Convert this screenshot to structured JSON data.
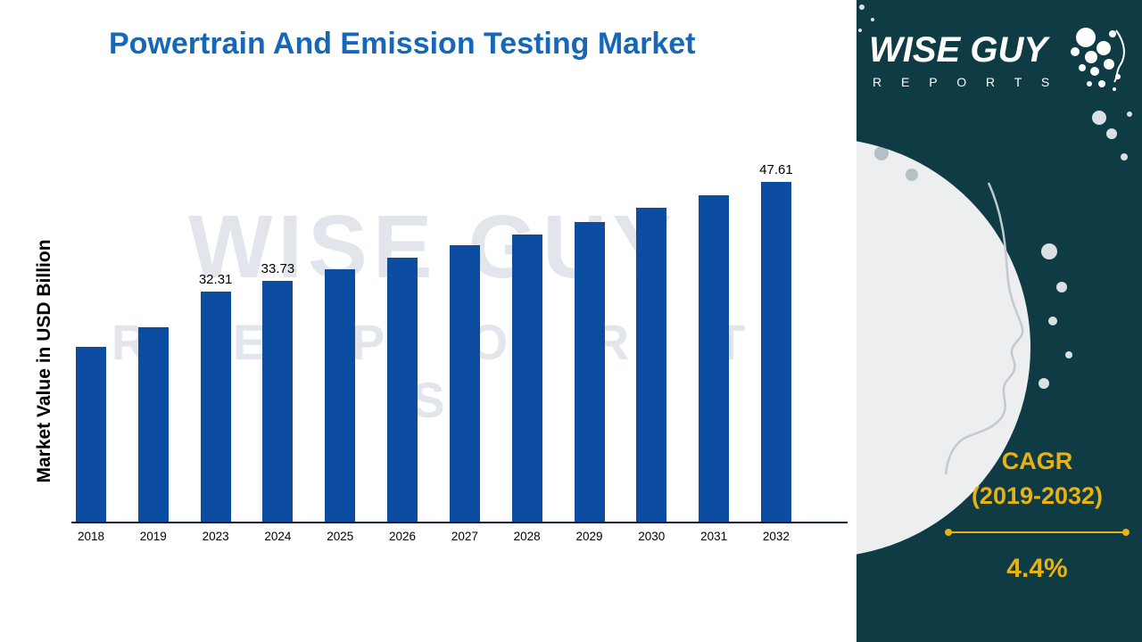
{
  "page": {
    "title": "Powertrain And Emission Testing Market"
  },
  "y_axis_label": "Market Value in USD Billion",
  "watermark": {
    "line1": "WISE GUY",
    "line2": "R E P O R T S"
  },
  "brand": {
    "name": "WISE GUY",
    "tagline": "R E P O R T S"
  },
  "cagr": {
    "label": "CAGR",
    "range": "(2019-2032)",
    "value": "4.4%"
  },
  "colors": {
    "title_blue": "#1767b8",
    "bar_blue": "#0c4da2",
    "panel_teal": "#0e3b44",
    "accent_gold": "#e9b210",
    "watermark_gray": "#cfd6e0"
  },
  "chart_data": {
    "type": "bar",
    "title": "Powertrain And Emission Testing Market",
    "xlabel": "",
    "ylabel": "Market Value in USD Billion",
    "categories": [
      "2018",
      "2019",
      "2023",
      "2024",
      "2025",
      "2026",
      "2027",
      "2028",
      "2029",
      "2030",
      "2031",
      "2032"
    ],
    "values": [
      24.5,
      27.3,
      32.31,
      33.73,
      35.4,
      37.0,
      38.7,
      40.3,
      42.0,
      44.0,
      45.8,
      47.61
    ],
    "data_labels": {
      "2023": "32.31",
      "2024": "33.73",
      "2032": "47.61"
    },
    "ylim": [
      0,
      50
    ],
    "grid": false,
    "legend": "none",
    "bar_color": "#0c4da2"
  }
}
